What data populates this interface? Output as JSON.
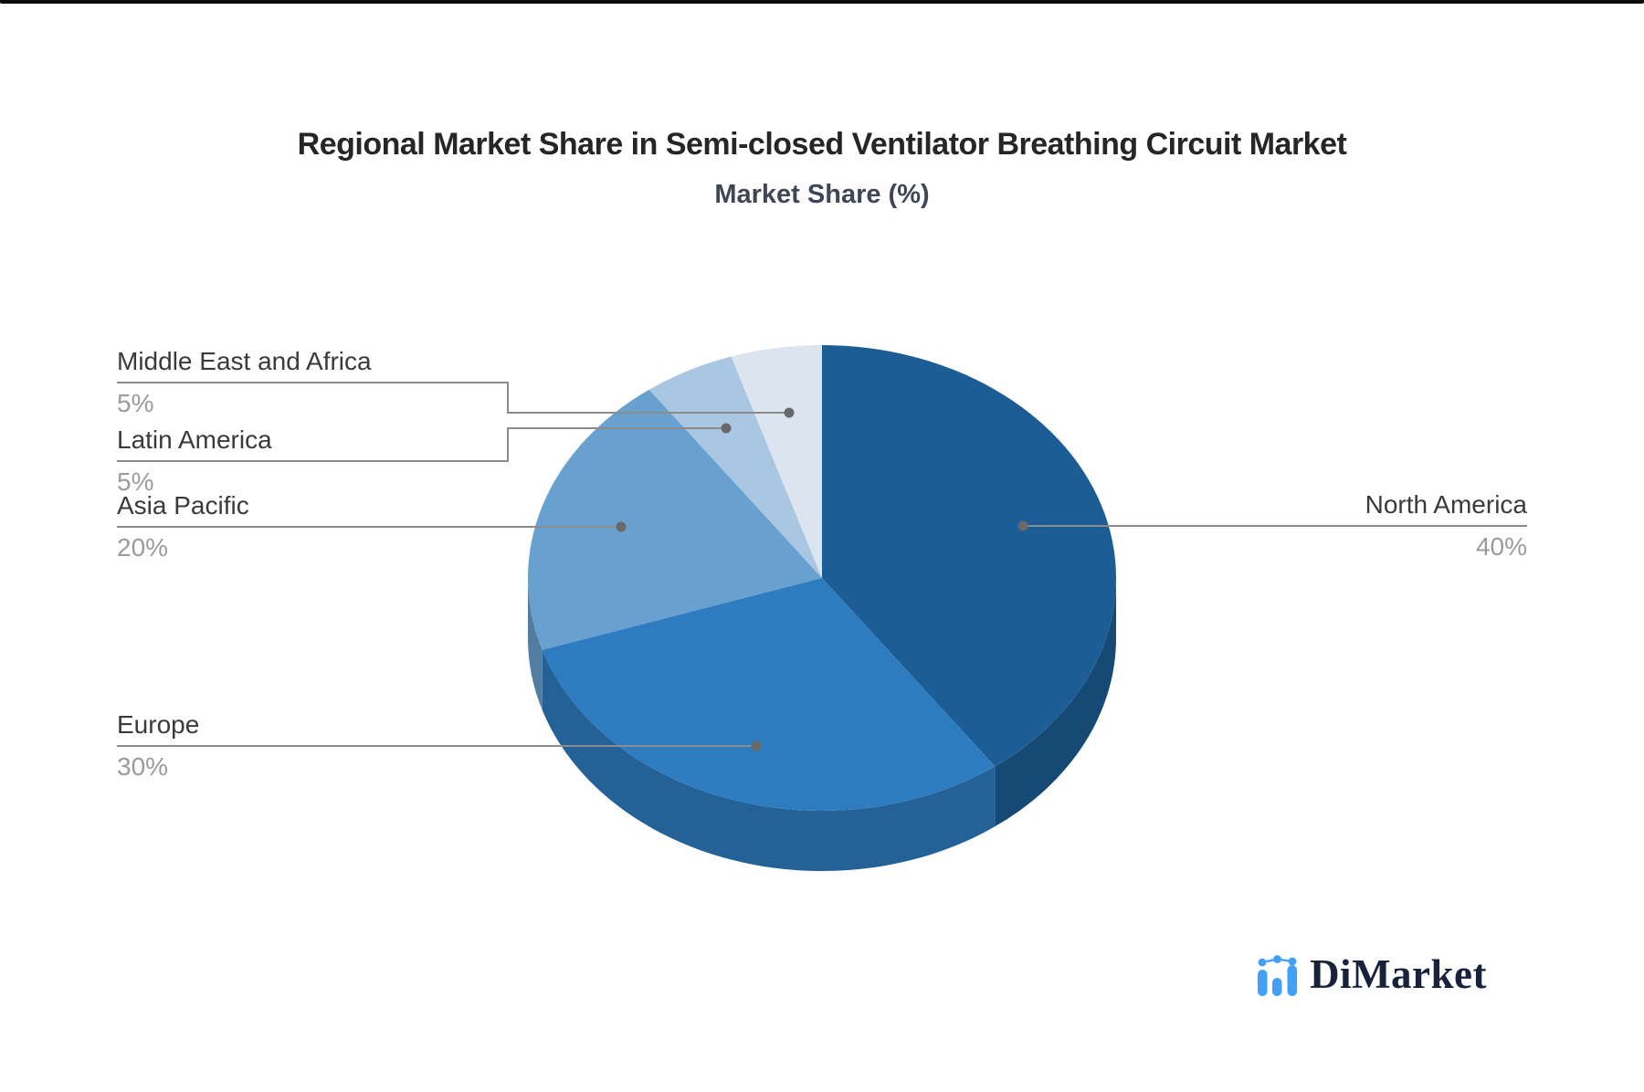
{
  "header": {
    "title": "Regional Market Share in Semi-closed Ventilator Breathing Circuit Market",
    "subtitle": "Market Share (%)"
  },
  "chart_data": {
    "type": "pie",
    "title": "Regional Market Share in Semi-closed Ventilator Breathing Circuit Market",
    "subtitle": "Market Share (%)",
    "effect_3d": true,
    "legend_position": "none",
    "start_angle_deg": 0,
    "direction": "clockwise",
    "categories": [
      "North America",
      "Europe",
      "Asia Pacific",
      "Latin America",
      "Middle East and Africa"
    ],
    "values": [
      40,
      30,
      20,
      5,
      5
    ],
    "colors": [
      "#1d5d96",
      "#2e7cc0",
      "#68a0d0",
      "#a9c6e3",
      "#dce5ef"
    ],
    "labels": {
      "north_america": {
        "name": "North America",
        "pct": "40%"
      },
      "europe": {
        "name": "Europe",
        "pct": "30%"
      },
      "asia_pacific": {
        "name": "Asia Pacific",
        "pct": "20%"
      },
      "latin_america": {
        "name": "Latin America",
        "pct": "5%"
      },
      "middle_east_africa": {
        "name": "Middle East and Africa",
        "pct": "5%"
      }
    }
  },
  "logo": {
    "text": "DiMarket"
  }
}
